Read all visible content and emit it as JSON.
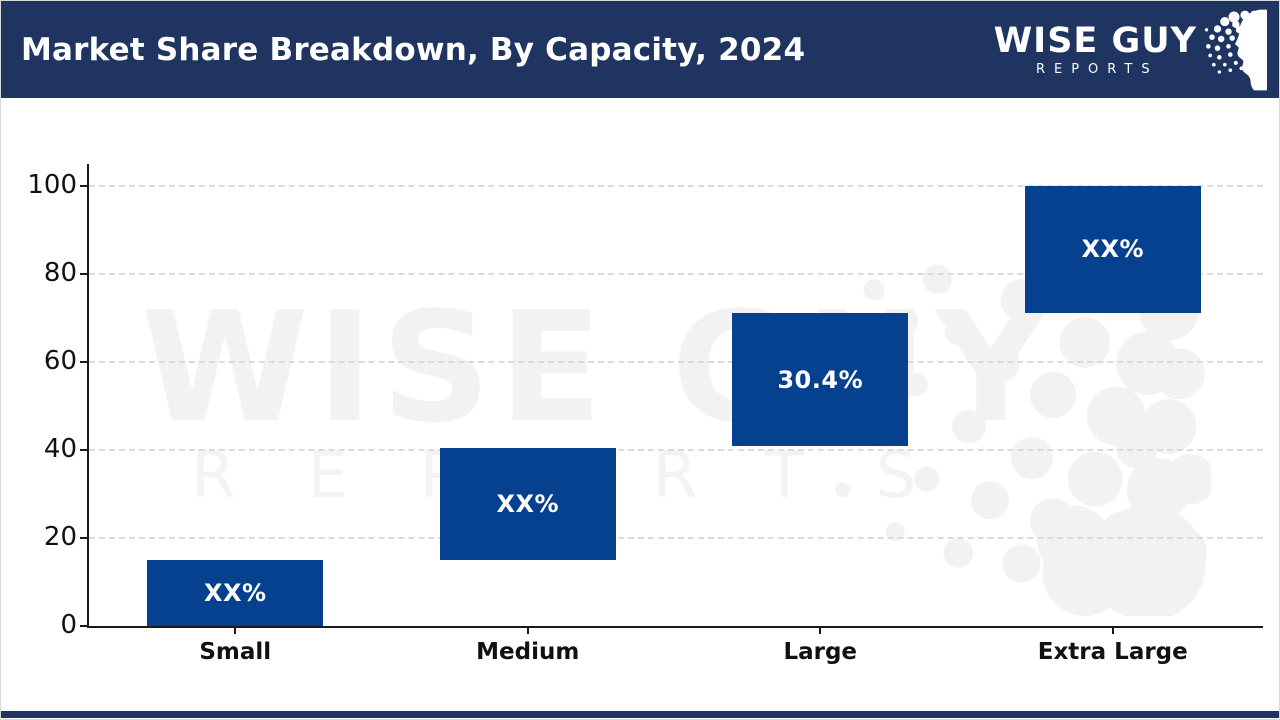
{
  "header": {
    "title": "Market Share Breakdown, By Capacity, 2024",
    "logo": {
      "name": "WISE GUY",
      "subtitle": "REPORTS"
    }
  },
  "watermark": {
    "name": "WISE GUY",
    "subtitle": "REPORTS"
  },
  "chart_data": {
    "type": "bar",
    "variant": "floating-waterfall",
    "title": "Market Share Breakdown, By Capacity, 2024",
    "categories": [
      "Small",
      "Medium",
      "Large",
      "Extra Large"
    ],
    "series": [
      {
        "name": "Market Share (%)",
        "bars": [
          {
            "category": "Small",
            "base": 0,
            "top": 15,
            "label": "XX%"
          },
          {
            "category": "Medium",
            "base": 15,
            "top": 40.5,
            "label": "XX%"
          },
          {
            "category": "Large",
            "base": 40.8,
            "top": 71.2,
            "label": "30.4%"
          },
          {
            "category": "Extra Large",
            "base": 71.2,
            "top": 100,
            "label": "XX%"
          }
        ]
      }
    ],
    "xlabel": "",
    "ylabel": "",
    "ylim": [
      0,
      100
    ],
    "yticks": [
      0,
      20,
      40,
      60,
      80,
      100
    ],
    "grid": {
      "horizontal": true,
      "style": "dashed",
      "color": "#dbdbdb"
    },
    "legend": "none",
    "bar_color": "#05418f",
    "bar_label_color": "#ffffff"
  },
  "colors": {
    "header_bg": "#1f3460",
    "footer_bg": "#1f3460",
    "bar": "#05418f",
    "axis": "#1a1a1a",
    "watermark": "#f2f2f2"
  }
}
